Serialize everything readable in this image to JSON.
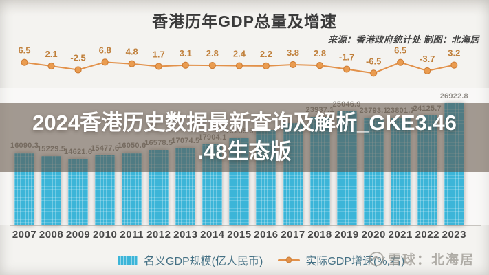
{
  "header": {
    "title": "香港历年GDP总量及增速",
    "source": "来源：香港政府统计处  制图：北海居"
  },
  "overlay": {
    "line1": "2024香港历史数据最新查询及解析_GKE3.46",
    "line2": ".48生态版"
  },
  "legend": {
    "bar_label": "名义GDP规模(亿人民币)",
    "line_label": "实际GDP增速(%,右)"
  },
  "watermark": {
    "icon": "snowball-logo",
    "text": "雪球：北海居"
  },
  "colors": {
    "background": "#f4f3f0",
    "bar": "#3cb5d8",
    "line": "#e2914a",
    "line_label": "#c0803c",
    "banner": "rgba(95,79,65,0.56)",
    "banner_text": "#ffffff"
  },
  "chart_data": {
    "type": "bar+line combo",
    "title": "香港历年GDP总量及增速",
    "source": "来源：香港政府统计处  制图：北海居",
    "categories": [
      "2007",
      "2008",
      "2009",
      "2010",
      "2011",
      "2012",
      "2013",
      "2014",
      "2015",
      "2016",
      "2017",
      "2018",
      "2019",
      "2020",
      "2021",
      "2022",
      "2023"
    ],
    "series": [
      {
        "name": "名义GDP规模(亿人民币)",
        "type": "bar",
        "values": [
          16090.3,
          15229.5,
          14621.6,
          15477.6,
          16050.6,
          16578.5,
          17074.5,
          17904.1,
          19265.6,
          20950,
          22550,
          23937.1,
          25046.9,
          23793.1,
          23801.7,
          24125.7,
          26922.8
        ],
        "value_labels": [
          "16090.3",
          "15229.5",
          "14621.6",
          "15477.6",
          "16050.6",
          "16578.5",
          "17074.5",
          "17904.1",
          "19265.6",
          "",
          "",
          "23937.1",
          "25046.9",
          "23793.1",
          "23801.7",
          "24125.7",
          "26922.8"
        ]
      },
      {
        "name": "实际GDP增速(%,右)",
        "type": "line",
        "values": [
          6.5,
          2.1,
          -2.5,
          6.8,
          4.8,
          1.7,
          3.1,
          2.8,
          2.4,
          2.2,
          3.8,
          2.8,
          -1.7,
          -6.5,
          6.5,
          -3.7,
          3.2
        ]
      }
    ],
    "notes": "左轴与右轴刻度未显示；2016、2017柱形数值标签被中部横幅遮挡，柱值为按柱高估算；图例位于底部。",
    "bar_axis_range_implied": [
      0,
      30000
    ],
    "grid": false,
    "legend_position": "bottom"
  }
}
